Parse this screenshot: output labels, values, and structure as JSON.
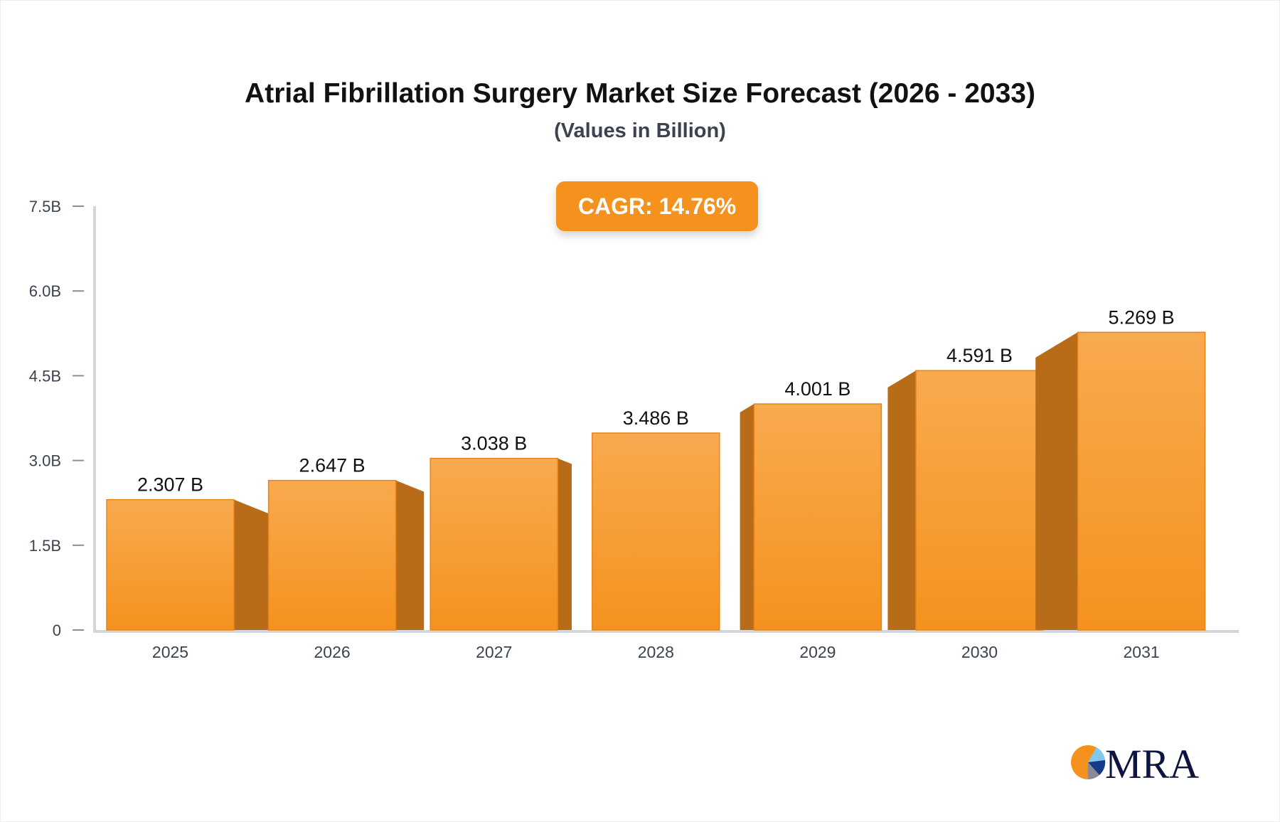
{
  "chart_data": {
    "type": "bar",
    "title": "Atrial Fibrillation Surgery Market Size Forecast (2026 - 2033)",
    "subtitle": "(Values in Billion)",
    "annotation": "CAGR: 14.76%",
    "categories": [
      "2025",
      "2026",
      "2027",
      "2028",
      "2029",
      "2030",
      "2031"
    ],
    "values": [
      2.307,
      2.647,
      3.038,
      3.486,
      4.001,
      4.591,
      5.269
    ],
    "data_labels": [
      "2.307 B",
      "2.647 B",
      "3.038 B",
      "3.486 B",
      "4.001 B",
      "4.591 B",
      "5.269 B"
    ],
    "ylim": [
      0,
      7.5
    ],
    "yticks": [
      0,
      1.5,
      3.0,
      4.5,
      6.0,
      7.5
    ],
    "ytick_labels": [
      "0",
      "1.5B",
      "3.0B",
      "4.5B",
      "6.0B",
      "7.5B"
    ],
    "xlabel": "",
    "ylabel": "",
    "grid": false,
    "colors": {
      "bar_top": "#f8aa4f",
      "bar_bottom": "#f5921e",
      "bar_side": "#b86c18",
      "axis": "#d4d6de",
      "badge": "#f5921e"
    }
  },
  "logo": {
    "text": "MRA",
    "colors": [
      "#f5921e",
      "#7fc8f0",
      "#163a8a",
      "#0d1440"
    ]
  }
}
